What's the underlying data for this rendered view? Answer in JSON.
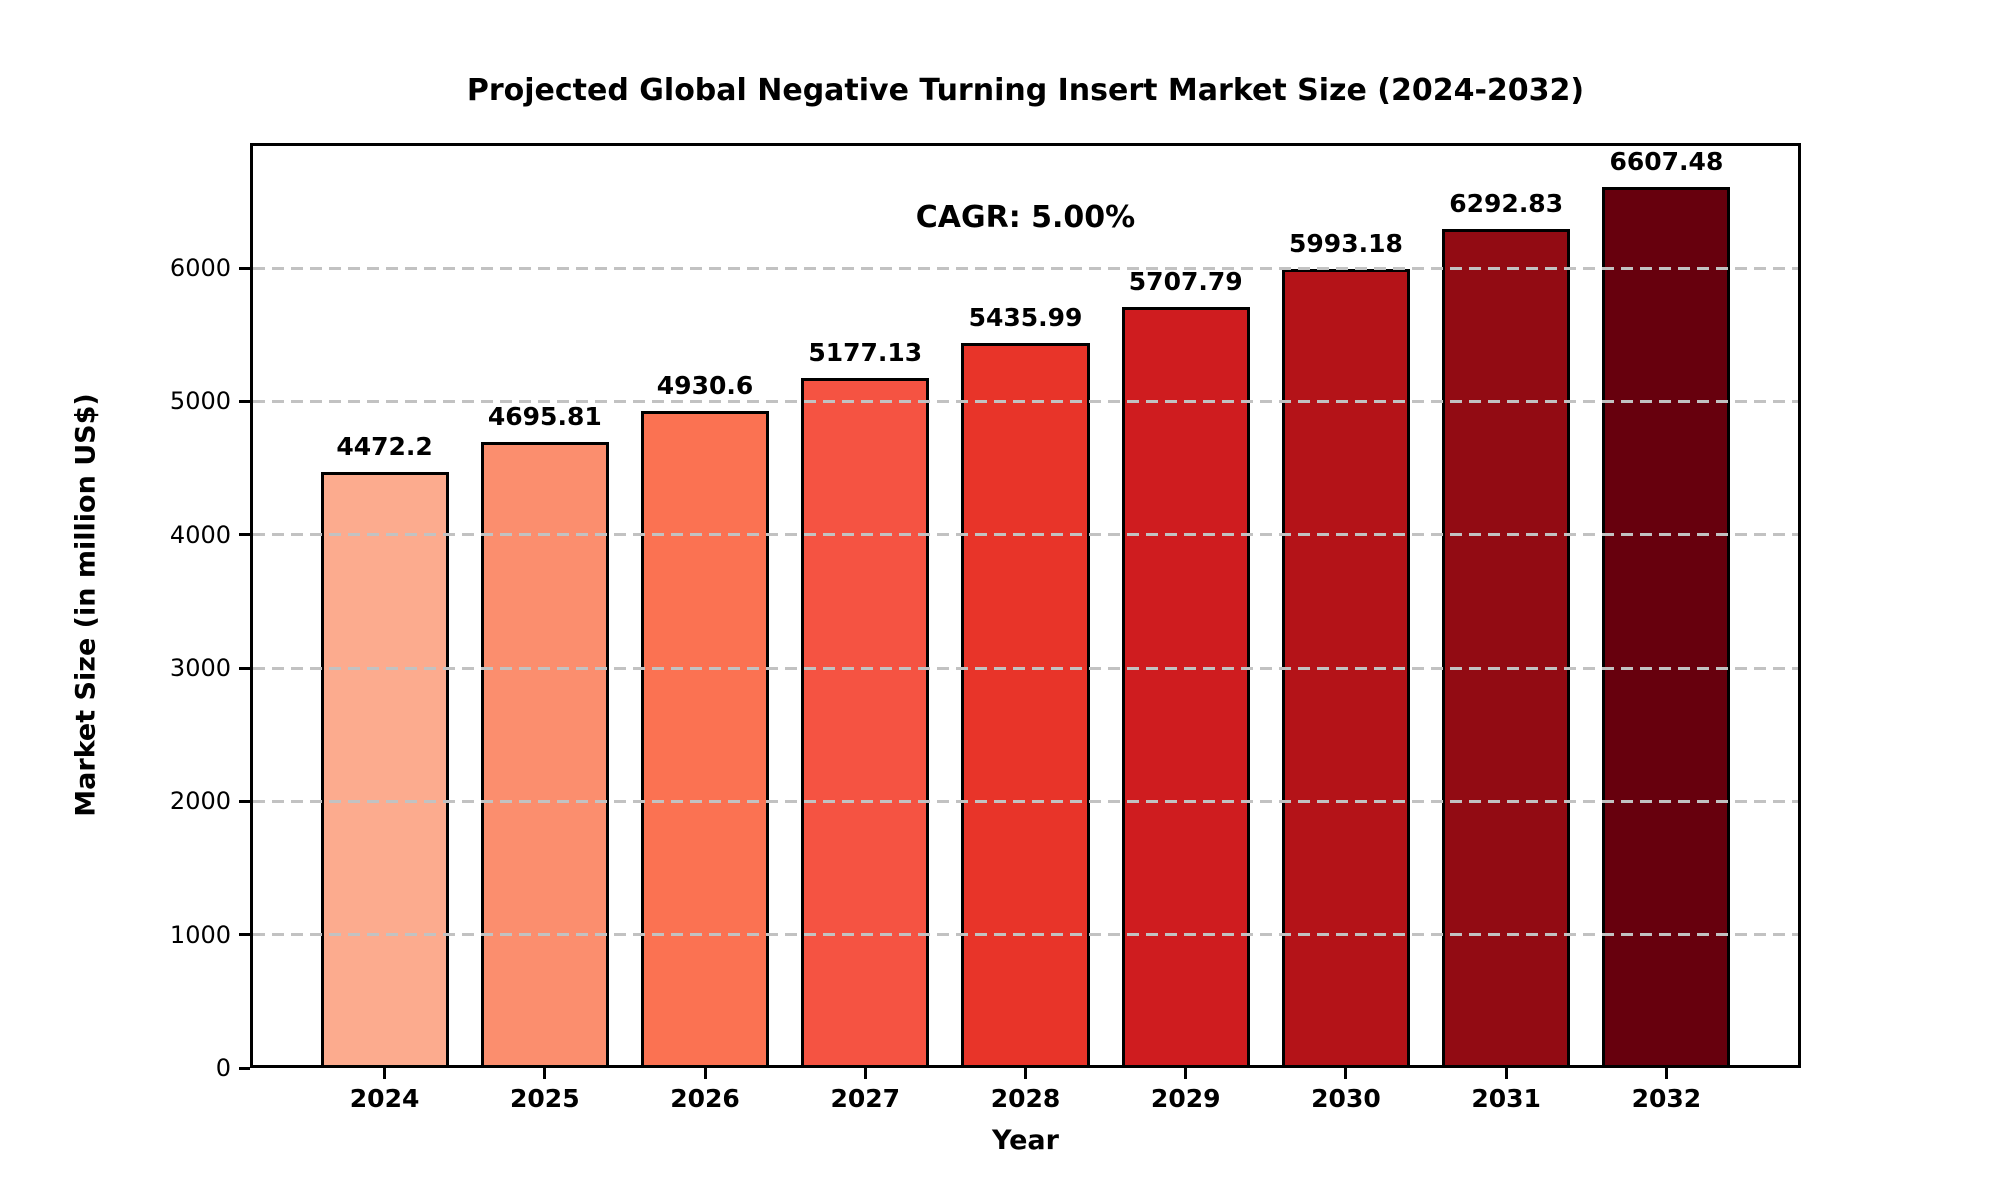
{
  "chart_data": {
    "type": "bar",
    "title": "Projected Global Negative Turning Insert Market Size (2024-2032)",
    "annotation": "CAGR: 5.00%",
    "xlabel": "Year",
    "ylabel": "Market Size (in million US$)",
    "categories": [
      "2024",
      "2025",
      "2026",
      "2027",
      "2028",
      "2029",
      "2030",
      "2031",
      "2032"
    ],
    "values": [
      4472.2,
      4695.81,
      4930.6,
      5177.13,
      5435.99,
      5707.79,
      5993.18,
      6292.83,
      6607.48
    ],
    "value_labels": [
      "4472.2",
      "4695.81",
      "4930.6",
      "5177.13",
      "5435.99",
      "5707.79",
      "5993.18",
      "6292.83",
      "6607.48"
    ],
    "bar_colors": [
      "#fcab8e",
      "#fb8e6e",
      "#fb7252",
      "#f55342",
      "#e83429",
      "#cf1c1f",
      "#b41318",
      "#920b13",
      "#67000d"
    ],
    "bar_edge_color": "#000000",
    "ylim": [
      0,
      6938
    ],
    "yticks": [
      0,
      1000,
      2000,
      3000,
      4000,
      5000,
      6000
    ],
    "grid": "horizontal-dashed",
    "grid_color": "#c2c2c2",
    "legend": "none",
    "background_color": "#ffffff"
  }
}
